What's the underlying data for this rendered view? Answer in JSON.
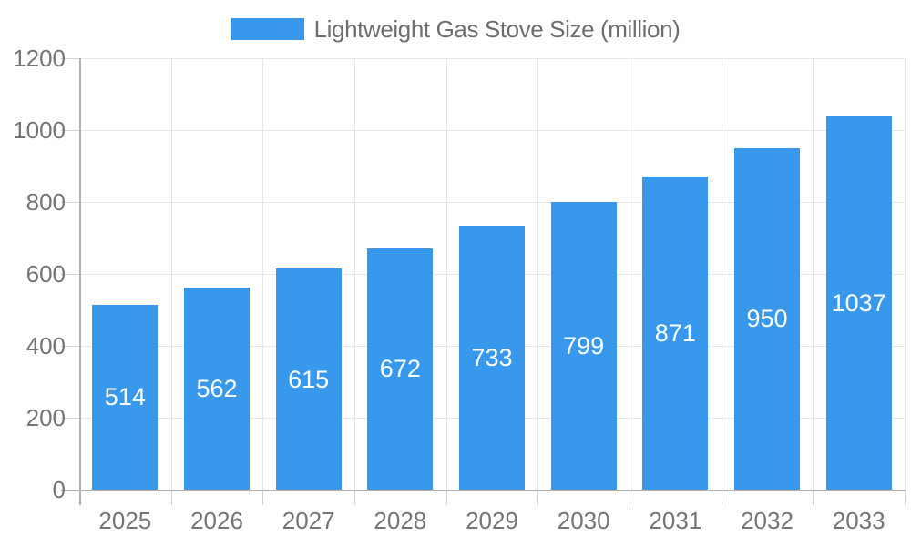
{
  "chart_data": {
    "type": "bar",
    "title": "",
    "legend": "Lightweight Gas Stove Size (million)",
    "legend_position": "top-center",
    "categories": [
      "2025",
      "2026",
      "2027",
      "2028",
      "2029",
      "2030",
      "2031",
      "2032",
      "2033"
    ],
    "series": [
      {
        "name": "Lightweight Gas Stove Size (million)",
        "values": [
          514,
          562,
          615,
          672,
          733,
          799,
          871,
          950,
          1037
        ]
      }
    ],
    "xlabel": "",
    "ylabel": "",
    "ylim": [
      0,
      1200
    ],
    "yticks": [
      0,
      200,
      400,
      600,
      800,
      1000,
      1200
    ],
    "grid": "on",
    "value_labels": "inside-center"
  },
  "colors": {
    "bar_fill": "#3899ec",
    "grid_line": "#e6e6e6",
    "axis_line": "#b0b0b0",
    "tick_line": "#d2d2d2",
    "axis_text": "#757575",
    "legend_text": "#6e6e6e",
    "value_text": "#ffffff",
    "background": "#ffffff"
  }
}
